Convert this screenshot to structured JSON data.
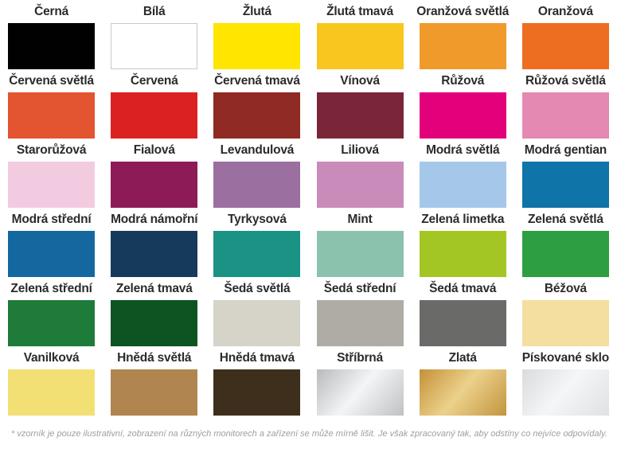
{
  "chart_data": {
    "type": "table",
    "columns": 6,
    "swatches": [
      {
        "label": "Černá",
        "color": "#010101"
      },
      {
        "label": "Bílá",
        "color": "#ffffff",
        "border": "#c9c9c9"
      },
      {
        "label": "Žlutá",
        "color": "#ffe500"
      },
      {
        "label": "Žlutá tmavá",
        "color": "#f9c51f"
      },
      {
        "label": "Oranžová světlá",
        "color": "#f19a2c"
      },
      {
        "label": "Oranžová",
        "color": "#ed6e21"
      },
      {
        "label": "Červená světlá",
        "color": "#e35431"
      },
      {
        "label": "Červená",
        "color": "#dc2221"
      },
      {
        "label": "Červená tmavá",
        "color": "#8f2a24"
      },
      {
        "label": "Vínová",
        "color": "#7b2638"
      },
      {
        "label": "Růžová",
        "color": "#e2017b"
      },
      {
        "label": "Růžová světlá",
        "color": "#e489b1"
      },
      {
        "label": "Starorůžová",
        "color": "#f3cbe1"
      },
      {
        "label": "Fialová",
        "color": "#8d1b58"
      },
      {
        "label": "Levandulová",
        "color": "#9b6fa0"
      },
      {
        "label": "Liliová",
        "color": "#c98bb9"
      },
      {
        "label": "Modrá světlá",
        "color": "#a5c8ea"
      },
      {
        "label": "Modrá gentian",
        "color": "#0f74a8"
      },
      {
        "label": "Modrá střední",
        "color": "#15689f"
      },
      {
        "label": "Modrá námořní",
        "color": "#163a5b"
      },
      {
        "label": "Tyrkysová",
        "color": "#1a9385"
      },
      {
        "label": "Mint",
        "color": "#8bc2ad"
      },
      {
        "label": "Zelená limetka",
        "color": "#a3c625"
      },
      {
        "label": "Zelená světlá",
        "color": "#2d9e41"
      },
      {
        "label": "Zelená střední",
        "color": "#1e7b39"
      },
      {
        "label": "Zelená tmavá",
        "color": "#0d5423"
      },
      {
        "label": "Šedá světlá",
        "color": "#d6d3c9"
      },
      {
        "label": "Šedá střední",
        "color": "#aeaca5"
      },
      {
        "label": "Šedá tmavá",
        "color": "#6a6b69"
      },
      {
        "label": "Béžová",
        "color": "#f5dfa0"
      },
      {
        "label": "Vanilková",
        "color": "#f2e074"
      },
      {
        "label": "Hnědá světlá",
        "color": "#b1854f"
      },
      {
        "label": "Hnědá tmavá",
        "color": "#3e2f1d"
      },
      {
        "label": "Stříbrná",
        "gradient": [
          "#b9babc",
          "#f4f5f6",
          "#c0c1c3"
        ]
      },
      {
        "label": "Zlatá",
        "gradient": [
          "#c59138",
          "#ecd18b",
          "#c2953e"
        ]
      },
      {
        "label": "Pískované sklo",
        "gradient": [
          "#d9dbdc",
          "#f5f6f7",
          "#dfe1e2"
        ]
      }
    ],
    "footnote": "* vzorník je pouze ilustrativní, zobrazení na různých monitorech a zařízení se může mírně lišit. Je však zpracovaný tak, aby odstíny co nejvíce odpovídaly."
  }
}
